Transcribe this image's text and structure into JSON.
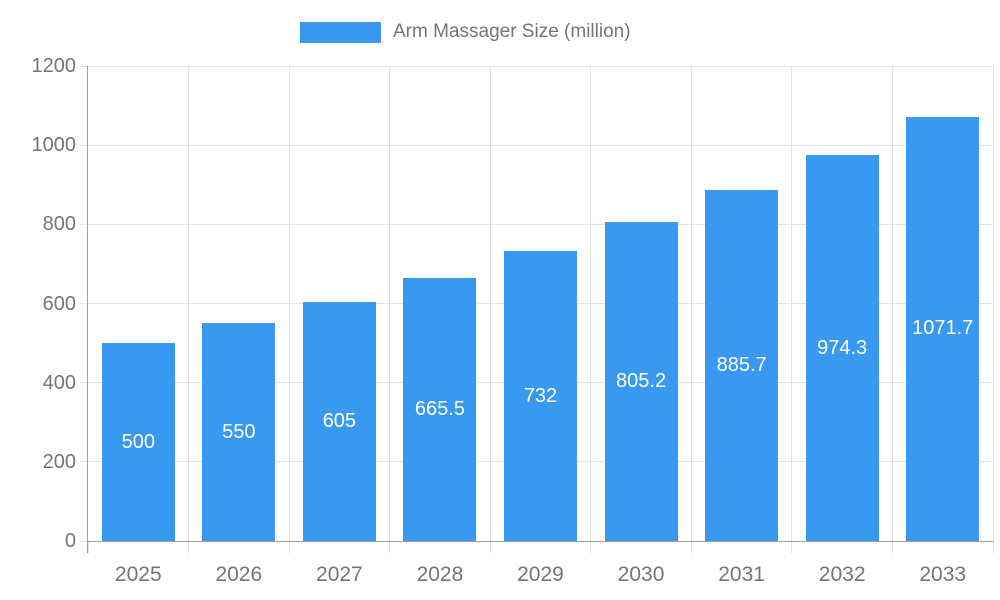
{
  "chart_data": {
    "type": "bar",
    "title": "Arm Massager Size (million)",
    "categories": [
      "2025",
      "2026",
      "2027",
      "2028",
      "2029",
      "2030",
      "2031",
      "2032",
      "2033"
    ],
    "series": [
      {
        "name": "Arm Massager Size (million)",
        "values": [
          500,
          550,
          605,
          665.5,
          732,
          805.2,
          885.7,
          974.3,
          1071.7
        ]
      }
    ],
    "xlabel": "",
    "ylabel": "",
    "ylim": [
      0,
      1200
    ],
    "yticks": [
      0,
      200,
      400,
      600,
      800,
      1000,
      1200
    ],
    "grid": true,
    "legend_position": "top-center",
    "bar_color": "#3999F0",
    "bar_label_color": "#FFFFFF",
    "axis_text_color": "#757575",
    "grid_color": "#E3E3E3",
    "axis_line_color": "#9E9E9E"
  }
}
